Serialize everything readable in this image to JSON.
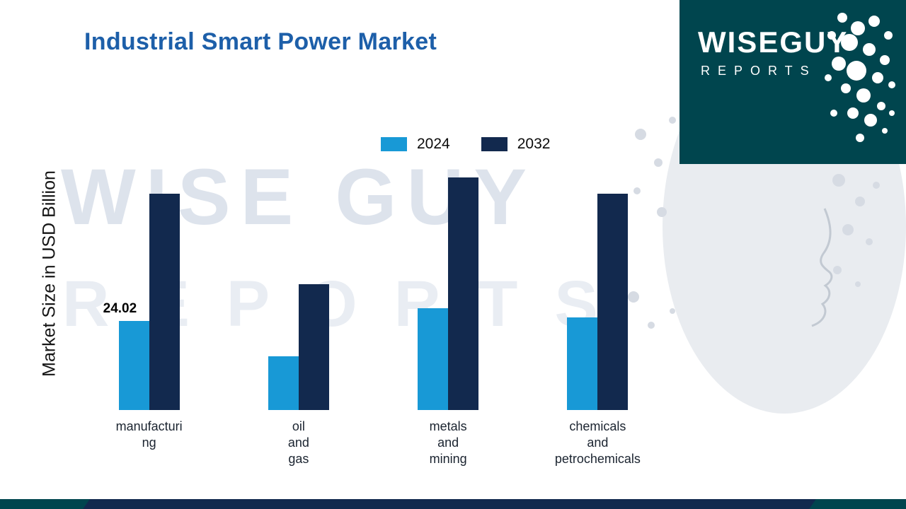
{
  "page": {
    "title": "Industrial Smart Power Market"
  },
  "logo": {
    "name": "WISEGUY",
    "subtitle": "REPORTS"
  },
  "watermark": {
    "line1": "WISE GUY",
    "line2": "REPORTS"
  },
  "colors": {
    "title_blue": "#1d5fa9",
    "series_2024": "#1899d6",
    "series_2032": "#12294e",
    "teal": "#00454e",
    "footer_navy": "#12294e",
    "watermark_gray": "#dde3ec"
  },
  "chart_data": {
    "type": "bar",
    "title": "Industrial Smart Power Market",
    "xlabel": "",
    "ylabel": "Market Size in USD Billion",
    "categories": [
      "manufacturing",
      "oil and gas",
      "metals and mining",
      "chemicals and petrochemicals"
    ],
    "category_label_lines": [
      [
        "manufacturi",
        "ng"
      ],
      [
        "oil",
        "and",
        "gas"
      ],
      [
        "metals",
        "and",
        "mining"
      ],
      [
        "chemicals",
        "and",
        "petrochemicals"
      ]
    ],
    "series": [
      {
        "name": "2024",
        "color": "#1899d6",
        "values": [
          24.02,
          14.5,
          27.5,
          25.1
        ]
      },
      {
        "name": "2032",
        "color": "#12294e",
        "values": [
          58.6,
          34.0,
          63.0,
          58.5
        ]
      }
    ],
    "data_labels": [
      {
        "series_index": 0,
        "category_index": 0,
        "text": "24.02"
      }
    ],
    "ylim": [
      0,
      66
    ],
    "grid": false,
    "legend_position": "top"
  }
}
